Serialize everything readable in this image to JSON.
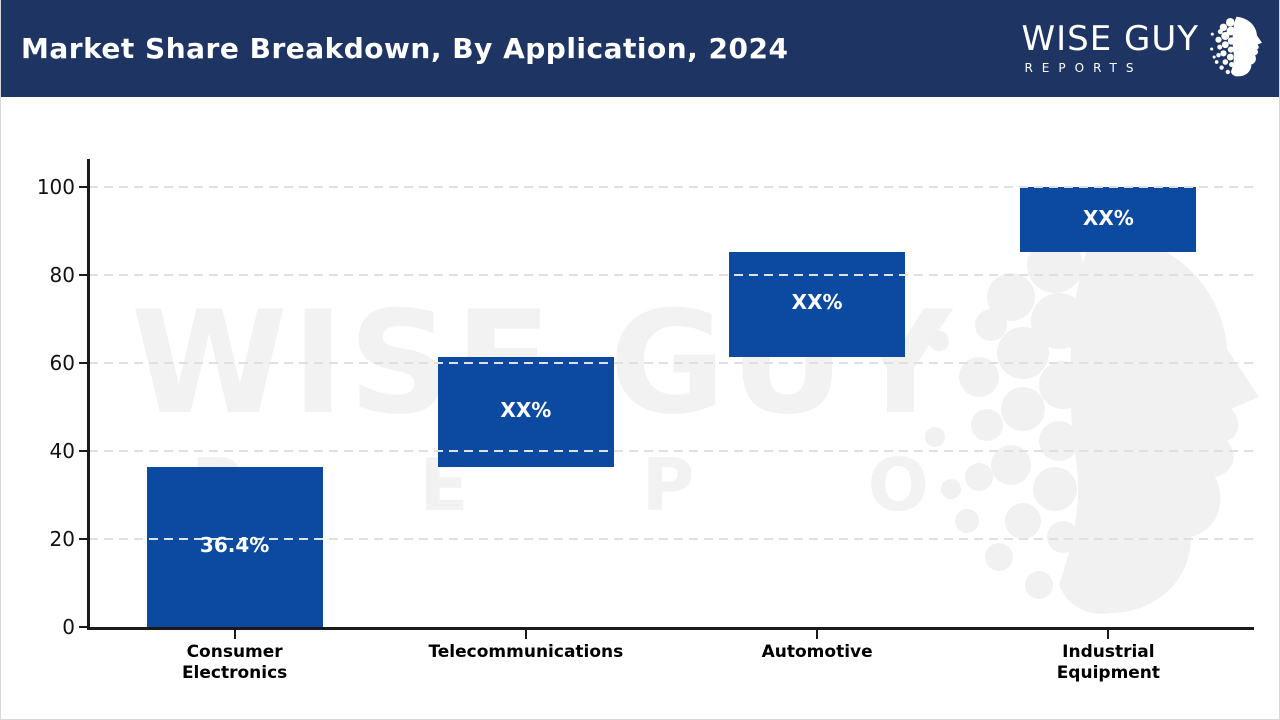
{
  "header": {
    "title": "Market Share Breakdown, By Application, 2024",
    "background_color": "#1e3564",
    "title_color": "#ffffff"
  },
  "logo": {
    "line1": "WISE GUY",
    "line2": "REPORTS",
    "icon": "dotted-head-profile-icon"
  },
  "watermark": {
    "line1": "WISE GUY",
    "line2": "R E P O R T S",
    "icon": "dotted-head-profile-icon",
    "color": "#f2f2f2"
  },
  "chart_data": {
    "type": "bar",
    "subtype": "floating-waterfall",
    "title": "Market Share Breakdown, By Application, 2024",
    "categories": [
      "Consumer Electronics",
      "Telecommunications",
      "Automotive",
      "Industrial Equipment"
    ],
    "categories_lines": [
      [
        "Consumer",
        "Electronics"
      ],
      [
        "Telecommunications"
      ],
      [
        "Automotive"
      ],
      [
        "Industrial",
        "Equipment"
      ]
    ],
    "series": [
      {
        "segments": [
          {
            "start": 0,
            "end": 36.4,
            "label": "36.4%"
          },
          {
            "start": 36.4,
            "end": 61.4,
            "label": "XX%"
          },
          {
            "start": 61.4,
            "end": 85.2,
            "label": "XX%"
          },
          {
            "start": 85.2,
            "end": 100,
            "label": "XX%"
          }
        ]
      }
    ],
    "yticks": [
      0,
      20,
      40,
      60,
      80,
      100
    ],
    "ylim": [
      0,
      106
    ],
    "xlabel": "",
    "ylabel": "",
    "grid": true,
    "legend": false,
    "bar_color": "#0b4aa0",
    "bar_label_color": "#ffffff",
    "gridline_color": "#e0e0e0",
    "axis_color": "#1a1a1a"
  }
}
